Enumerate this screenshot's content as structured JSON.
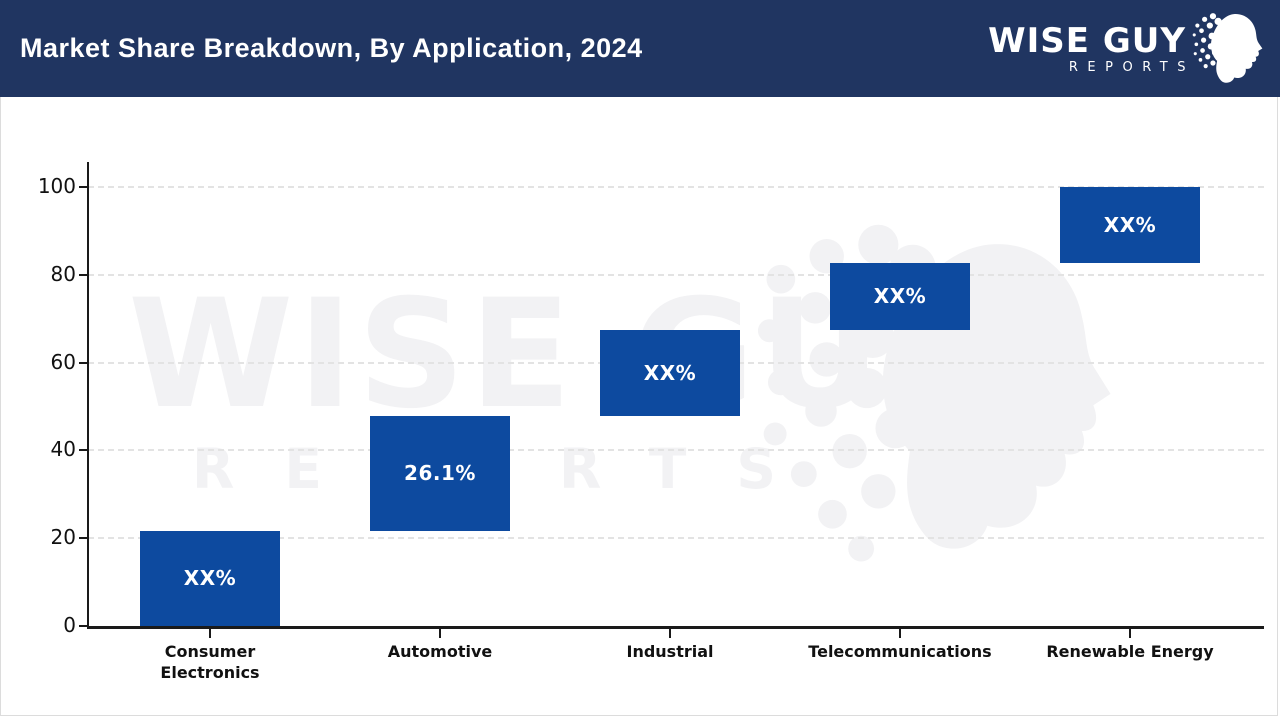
{
  "header": {
    "title": "Market Share Breakdown, By Application, 2024",
    "logo": {
      "line1": "WISE GUY",
      "line2": "REPORTS"
    }
  },
  "watermark": {
    "line1": "WISE GUY",
    "line2": "REPORTS"
  },
  "chart_data": {
    "type": "bar",
    "subtype": "floating-waterfall",
    "title": "Market Share Breakdown, By Application, 2024",
    "categories": [
      "Consumer\nElectronics",
      "Automotive",
      "Industrial",
      "Telecommunications",
      "Renewable Energy"
    ],
    "segments": [
      {
        "category": "Consumer Electronics",
        "start": 0,
        "end": 21.7,
        "label": "XX%"
      },
      {
        "category": "Automotive",
        "start": 21.7,
        "end": 47.8,
        "label": "26.1%"
      },
      {
        "category": "Industrial",
        "start": 47.8,
        "end": 67.5,
        "label": "XX%"
      },
      {
        "category": "Telecommunications",
        "start": 67.5,
        "end": 82.8,
        "label": "XX%"
      },
      {
        "category": "Renewable Energy",
        "start": 82.8,
        "end": 100,
        "label": "XX%"
      }
    ],
    "ylim": [
      0,
      100
    ],
    "yticks": [
      0,
      20,
      40,
      60,
      80,
      100
    ],
    "xlabel": "",
    "ylabel": "",
    "grid": "horizontal-dashed",
    "legend": "none",
    "bar_color": "#0d4a9f",
    "bar_label_color": "#ffffff"
  },
  "colors": {
    "header_bg": "#203561",
    "bar": "#0d4a9f",
    "watermark": "#f2f2f4",
    "axis": "#1a1a1a",
    "grid": "#e3e3e3",
    "panel_border": "#dcdcdc"
  }
}
